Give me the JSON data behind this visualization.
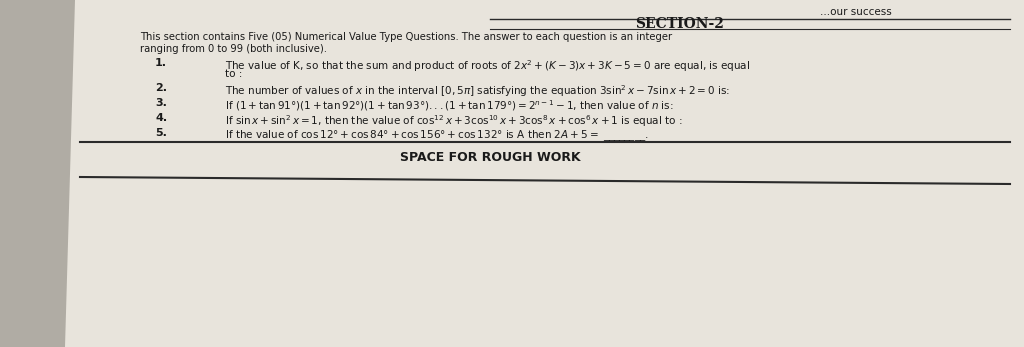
{
  "bg_color": "#c8c4bc",
  "paper_color": "#e8e4dc",
  "title": "SECTION-2",
  "top_text_right": "...our success",
  "header_line1": "This section contains Five (05) Numerical Value Type Questions. The answer to each question is an integer",
  "header_line2": "ranging from 0 to 99 (both inclusive).",
  "q1_num": "1.",
  "q1_line1": "The value of K, so that the sum and product of roots of $2x^2+(K-3)x+3K-5=0$ are equal, is equal",
  "q1_line2": "to :",
  "q2_num": "2.",
  "q2_text": "The number of values of $x$ in the interval $[0, 5\\pi]$ satisfying the equation $3\\sin^2 x-7\\sin x+2=0$ is:",
  "q3_num": "3.",
  "q3_text": "If $(1+\\tan 91°)(1+\\tan 92°)(1+\\tan 93°)...(1+\\tan 179°)=2^{n-1}-1$, then value of $n$ is:",
  "q4_num": "4.",
  "q4_text": "If $\\sin x+\\sin^2 x=1$, then the value of $\\cos^{12} x+3\\cos^{10} x+3\\cos^8 x+\\cos^6 x+1$ is equal to :",
  "q5_num": "5.",
  "q5_text": "If the value of $\\cos 12°+\\cos 84°+\\cos 156°+\\cos 132°$ is A then $2A+5=$ ________.",
  "footer": "SPACE FOR ROUGH WORK",
  "text_color": "#1a1a1a",
  "line_color": "#2a2a2a"
}
